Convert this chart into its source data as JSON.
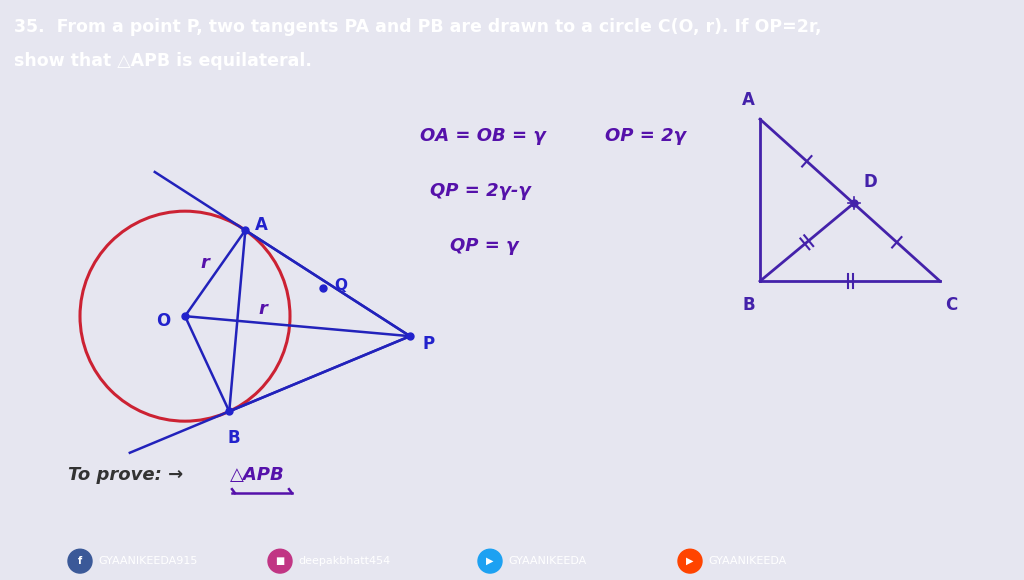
{
  "title_text": "35.  From a point P, two tangents PA and PB are drawn to a circle C(O, r). If OP=2r,",
  "title_line2": "show that △APB is equilateral.",
  "title_bg": "#1e3a5f",
  "title_fg": "#ffffff",
  "bg_color": "#e6e6f0",
  "circle_color": "#cc2233",
  "line_color": "#2222bb",
  "point_color": "#2222cc",
  "text_color": "#5511aa",
  "bottom_bar_color": "#1a1a1a",
  "note1": "OA = OB = γ",
  "note2": "OP = 2γ",
  "note3": "QP = 2γ-γ",
  "note4": "QP = γ",
  "bottom_text1": "To prove: →",
  "bottom_text2": "△APB",
  "footer_items": [
    {
      "icon_color": "#3b5998",
      "label": "GYAANIKEEDA915"
    },
    {
      "icon_color": "#c13584",
      "label": "deepakbhatt454"
    },
    {
      "icon_color": "#1da1f2",
      "label": "GYAANIKEEDA"
    },
    {
      "icon_color": "#ff0000",
      "label": "GYAANIKEEDA"
    }
  ]
}
